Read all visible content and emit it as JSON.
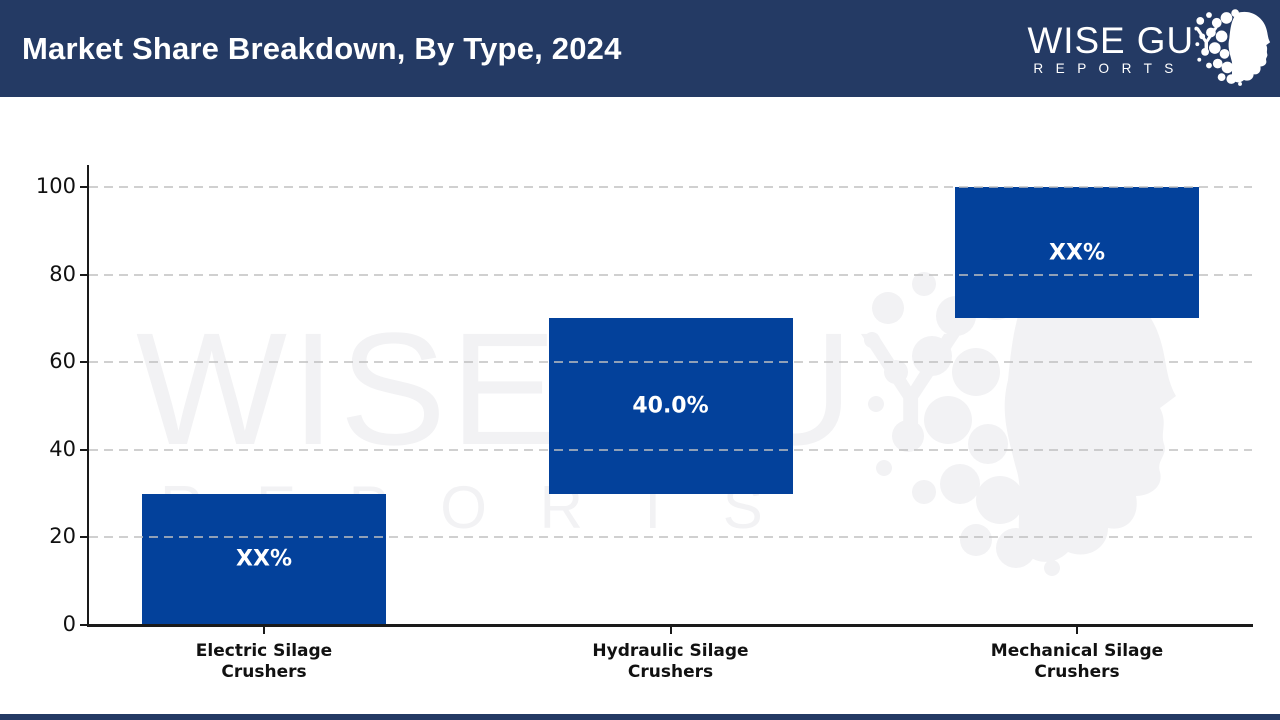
{
  "header": {
    "title": "Market Share Breakdown, By Type, 2024",
    "logo": {
      "brand": "WISE GUY",
      "sub": "R E P O R T S"
    }
  },
  "watermark": {
    "brand": "WISE GUY",
    "sub": "R E P O R T S"
  },
  "colors": {
    "header_bg": "#243A64",
    "footer_bg": "#243A64",
    "bar": "#03419B",
    "grid": "#C8C8C8",
    "axis": "#1A1A1A",
    "bar_label": "#FFFFFF",
    "watermark": "#F2F2F4"
  },
  "chart_data": {
    "type": "bar",
    "subtype": "floating-waterfall",
    "title": "Market Share Breakdown, By Type, 2024",
    "categories": [
      [
        "Electric Silage",
        "Crushers"
      ],
      [
        "Hydraulic Silage",
        "Crushers"
      ],
      [
        "Mechanical Silage",
        "Crushers"
      ]
    ],
    "segments": [
      {
        "start": 0,
        "end": 30,
        "height": 30,
        "label": "XX%"
      },
      {
        "start": 30,
        "end": 70,
        "height": 40,
        "label": "40.0%"
      },
      {
        "start": 70,
        "end": 100,
        "height": 30,
        "label": "XX%"
      }
    ],
    "yticks": [
      0,
      20,
      40,
      60,
      80,
      100
    ],
    "ylim": [
      0,
      105
    ],
    "xlabel": "",
    "ylabel": "",
    "grid": "horizontal-dashed",
    "legend": "none",
    "bar_color": "#03419B"
  }
}
